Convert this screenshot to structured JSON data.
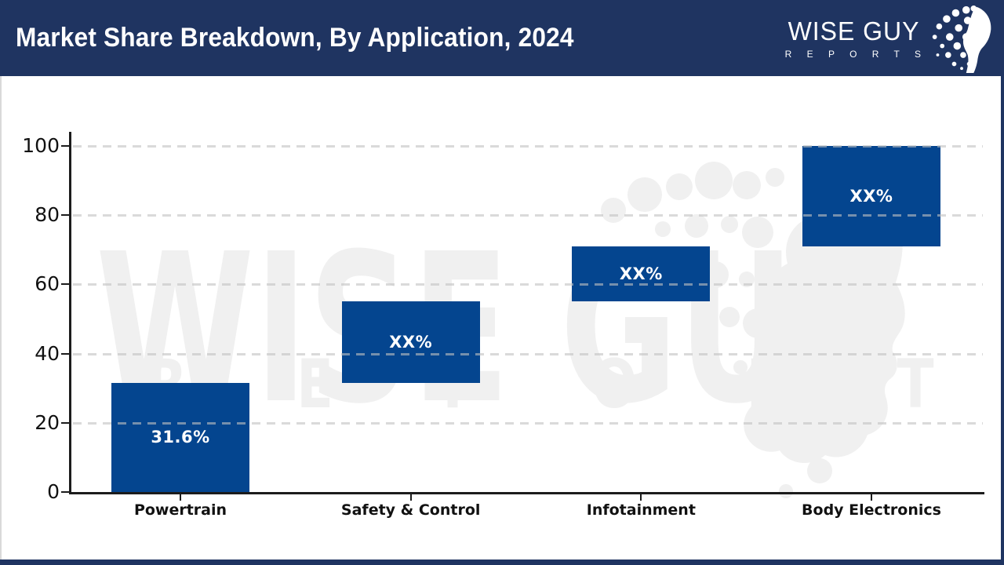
{
  "header": {
    "title": "Market Share Breakdown, By Application, 2024",
    "logo": {
      "name": "WISE GUY",
      "sub": "R E P O R T S"
    }
  },
  "watermark": {
    "line1": "WISE GUY",
    "line2": "R E P O R T S"
  },
  "colors": {
    "header_bg": "#1f3461",
    "bar": "#04458f",
    "grid": "#d9d9d9",
    "watermark": "#f0f0f0",
    "axis": "#1c1c1c",
    "title_text": "#ffffff"
  },
  "chart_data": {
    "type": "bar",
    "subtype": "waterfall",
    "title": "Market Share Breakdown, By Application, 2024",
    "xlabel": "",
    "ylabel": "",
    "categories": [
      "Powertrain",
      "Safety & Control",
      "Infotainment",
      "Body Electronics"
    ],
    "segments": [
      {
        "category": "Powertrain",
        "start": 0,
        "end": 31.6,
        "label": "31.6%"
      },
      {
        "category": "Safety & Control",
        "start": 31.6,
        "end": 55.2,
        "label": "XX%"
      },
      {
        "category": "Infotainment",
        "start": 55.2,
        "end": 70.9,
        "label": "XX%"
      },
      {
        "category": "Body Electronics",
        "start": 70.9,
        "end": 100,
        "label": "XX%"
      }
    ],
    "ylim": [
      0,
      100
    ],
    "yticks": [
      0,
      20,
      40,
      60,
      80,
      100
    ],
    "grid": "horizontal-dashed",
    "legend": "none",
    "bar_color": "#04458f"
  }
}
